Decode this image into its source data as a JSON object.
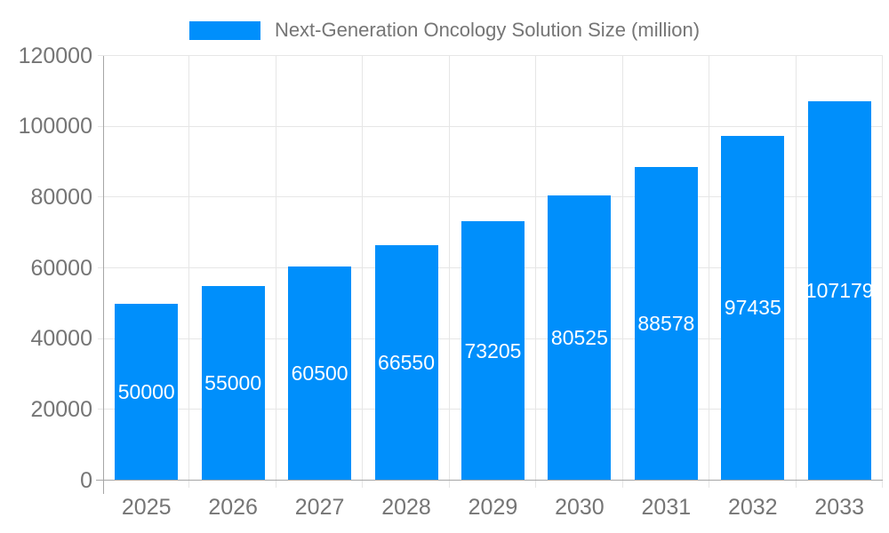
{
  "legend": {
    "label": "Next-Generation Oncology Solution Size (million)",
    "swatch_color": "#008FFB"
  },
  "chart_data": {
    "type": "bar",
    "title": "Next-Generation Oncology Solution Size (million)",
    "categories": [
      "2025",
      "2026",
      "2027",
      "2028",
      "2029",
      "2030",
      "2031",
      "2032",
      "2033"
    ],
    "series": [
      {
        "name": "Next-Generation Oncology Solution Size (million)",
        "values": [
          50000,
          55000,
          60500,
          66550,
          73205,
          80525,
          88578,
          97435,
          107179
        ]
      }
    ],
    "xlabel": "",
    "ylabel": "",
    "ylim": [
      0,
      120000
    ],
    "yticks": [
      0,
      20000,
      40000,
      60000,
      80000,
      100000,
      120000
    ],
    "grid": true,
    "legend_position": "top",
    "data_labels": "inside-center",
    "colors": {
      "bar": "#008FFB",
      "grid": "#e6e6e6",
      "axis": "#a6a6a6",
      "tick_text": "#757575",
      "value_label": "#ffffff",
      "background": "#ffffff"
    }
  }
}
